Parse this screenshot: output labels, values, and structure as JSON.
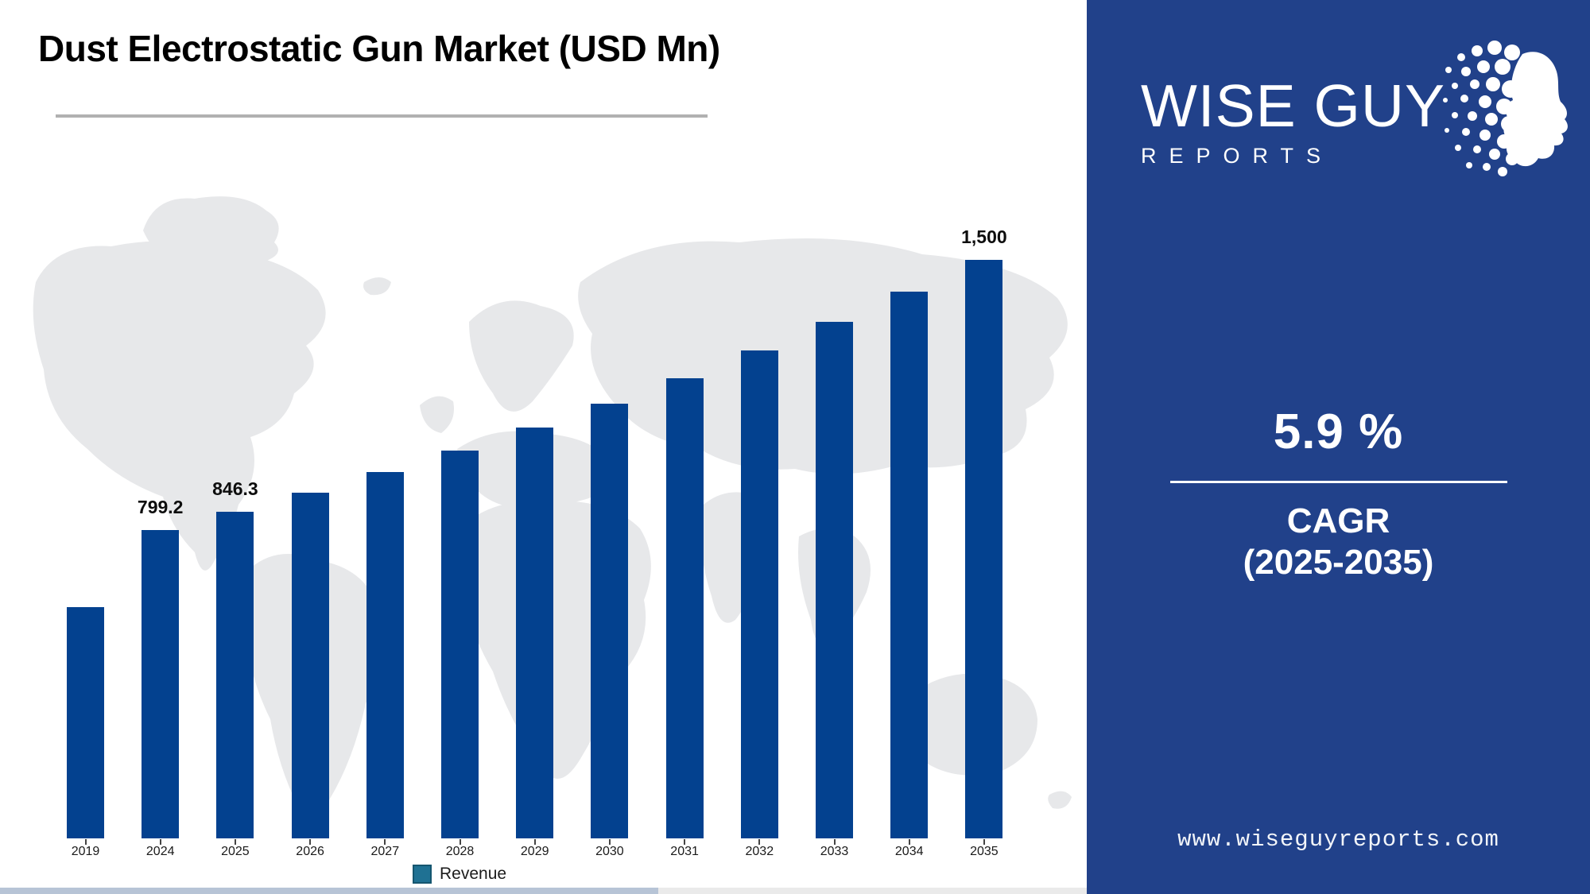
{
  "title": "Dust Electrostatic Gun Market (USD Mn)",
  "sidebar": {
    "logo_line1": "WISE GUY",
    "logo_line2": "REPORTS",
    "cagr_value": "5.9 %",
    "cagr_label_line1": "CAGR",
    "cagr_label_line2": "(2025-2035)",
    "website": "www.wiseguyreports.com",
    "bg_color": "#21418a"
  },
  "chart_data": {
    "type": "bar",
    "title": "Dust Electrostatic Gun Market (USD Mn)",
    "categories": [
      "2019",
      "2024",
      "2025",
      "2026",
      "2027",
      "2028",
      "2029",
      "2030",
      "2031",
      "2032",
      "2033",
      "2034",
      "2035"
    ],
    "values": [
      600,
      799.2,
      846.3,
      896.2,
      949.1,
      1005.1,
      1064.4,
      1127.2,
      1193.7,
      1264.1,
      1338.7,
      1417.7,
      1500
    ],
    "data_labels": [
      {
        "category": "2024",
        "text": "799.2"
      },
      {
        "category": "2025",
        "text": "846.3"
      },
      {
        "category": "2035",
        "text": "1,500"
      }
    ],
    "legend": [
      {
        "label": "Revenue",
        "color": "#1f7193"
      }
    ],
    "bar_color": "#03418f",
    "xlabel": "",
    "ylabel": "",
    "ylim": [
      0,
      1600
    ],
    "grid": false,
    "legend_position": "bottom-center"
  }
}
